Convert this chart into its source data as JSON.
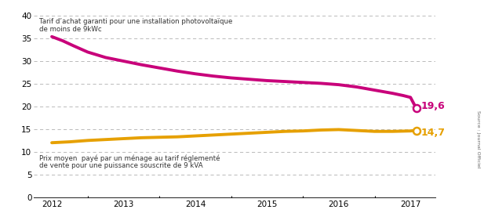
{
  "pink_x": [
    2012.0,
    2012.15,
    2012.3,
    2012.5,
    2012.75,
    2013.0,
    2013.25,
    2013.5,
    2013.75,
    2014.0,
    2014.25,
    2014.5,
    2014.75,
    2015.0,
    2015.25,
    2015.5,
    2015.75,
    2016.0,
    2016.25,
    2016.5,
    2016.75,
    2016.9,
    2017.0,
    2017.08
  ],
  "pink_y": [
    35.4,
    34.5,
    33.4,
    32.0,
    30.8,
    30.0,
    29.2,
    28.5,
    27.8,
    27.2,
    26.7,
    26.3,
    26.0,
    25.7,
    25.5,
    25.3,
    25.1,
    24.8,
    24.3,
    23.6,
    22.9,
    22.4,
    22.0,
    19.6
  ],
  "orange_x": [
    2012.0,
    2012.25,
    2012.5,
    2012.75,
    2013.0,
    2013.25,
    2013.5,
    2013.75,
    2014.0,
    2014.25,
    2014.5,
    2014.75,
    2015.0,
    2015.25,
    2015.5,
    2015.75,
    2016.0,
    2016.25,
    2016.5,
    2016.75,
    2017.0,
    2017.08
  ],
  "orange_y": [
    12.0,
    12.2,
    12.5,
    12.7,
    12.9,
    13.1,
    13.2,
    13.3,
    13.5,
    13.7,
    13.9,
    14.1,
    14.3,
    14.5,
    14.6,
    14.8,
    14.9,
    14.7,
    14.5,
    14.5,
    14.6,
    14.7
  ],
  "pink_color": "#c8007a",
  "orange_color": "#e6a000",
  "pink_label_value": "19,6",
  "orange_label_value": "14,7",
  "title_pink_line1": "Tarif d’achat garanti pour une installation photovoltaïque",
  "title_pink_line2": "de moins de 9kWc",
  "title_orange_line1": "Prix moyen  payé par un ménage au tarif réglementé",
  "title_orange_line2": "de vente pour une puissance souscrite de 9 kVA",
  "source_text": "Source : Journal Officiel",
  "yticks": [
    0,
    5,
    10,
    15,
    20,
    25,
    30,
    35,
    40
  ],
  "xticks": [
    2012,
    2013,
    2014,
    2015,
    2016,
    2017
  ],
  "ylim": [
    0,
    42
  ],
  "xlim": [
    2011.75,
    2017.35
  ],
  "bg_color": "#ffffff",
  "grid_color": "#b0b0b0",
  "tick_marker_x": [
    2012.5,
    2013.5,
    2014.5,
    2015.5,
    2016.5
  ],
  "linewidth_pink": 2.8,
  "linewidth_orange": 2.8
}
